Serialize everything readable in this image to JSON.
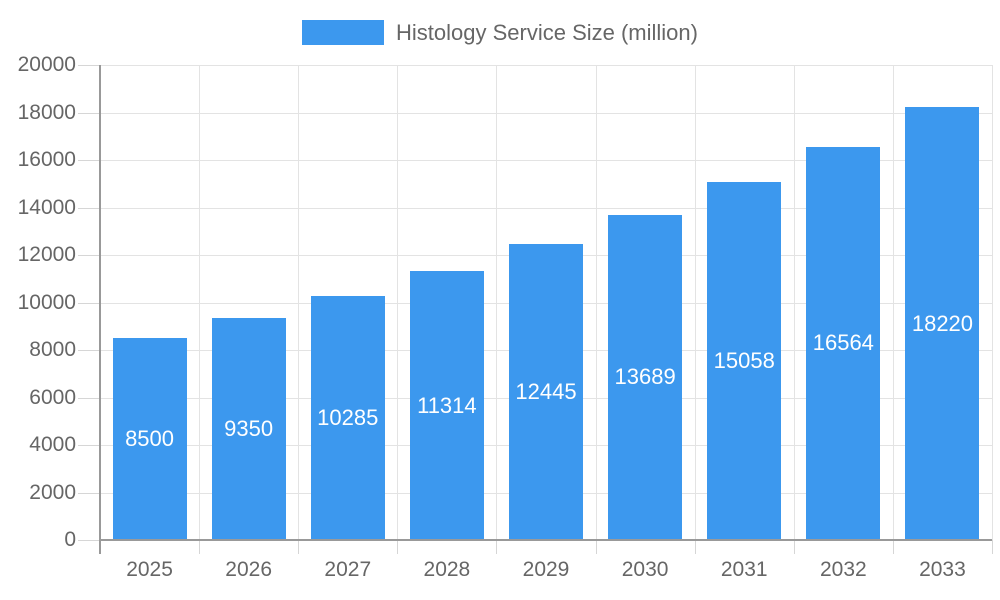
{
  "legend": {
    "label": "Histology Service Size (million)"
  },
  "chart_data": {
    "type": "bar",
    "title": "Histology Service Size (million)",
    "categories": [
      "2025",
      "2026",
      "2027",
      "2028",
      "2029",
      "2030",
      "2031",
      "2032",
      "2033"
    ],
    "values": [
      8500,
      9350,
      10285,
      11314,
      12445,
      13689,
      15058,
      16564,
      18220
    ],
    "xlabel": "",
    "ylabel": "",
    "ylim": [
      0,
      20000
    ],
    "yticks": [
      0,
      2000,
      4000,
      6000,
      8000,
      10000,
      12000,
      14000,
      16000,
      18000,
      20000
    ],
    "grid": true,
    "legend_position": "top",
    "bar_value_labels": "inside-center",
    "colors": {
      "bar": "#3C98EE",
      "bar_label": "#FFFFFF",
      "axis_line": "#999999",
      "grid_line": "#E3E3E3",
      "tick": "#D6D6D6",
      "text": "#666666",
      "background": "#FFFFFF"
    }
  }
}
